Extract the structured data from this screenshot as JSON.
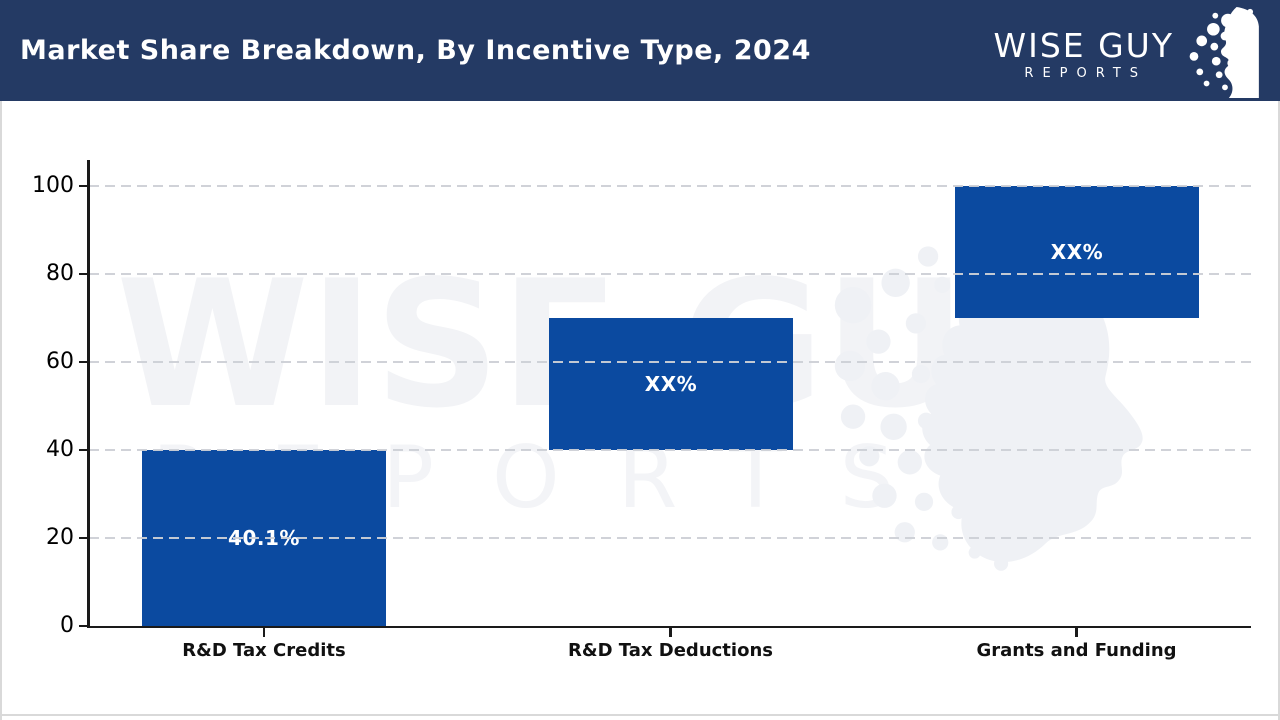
{
  "header": {
    "title": "Market Share Breakdown, By Incentive Type, 2024",
    "background_color": "#243a64",
    "brand": {
      "line1": "WISE GUY",
      "line2": "REPORTS"
    }
  },
  "watermark": {
    "line1": "WISE GUY",
    "line2": "REPORTS"
  },
  "chart_data": {
    "type": "bar",
    "subtype": "waterfall-stacked-segments",
    "title": "Market Share Breakdown, By Incentive Type, 2024",
    "categories": [
      "R&D Tax Credits",
      "R&D Tax Deductions",
      "Grants and Funding"
    ],
    "segments": [
      {
        "category": "R&D Tax Credits",
        "start": 0,
        "end": 40.1,
        "label": "40.1%"
      },
      {
        "category": "R&D Tax Deductions",
        "start": 40,
        "end": 70,
        "label": "XX%"
      },
      {
        "category": "Grants and Funding",
        "start": 70,
        "end": 100,
        "label": "XX%"
      }
    ],
    "xlabel": "",
    "ylabel": "",
    "ylim": [
      0,
      100
    ],
    "yticks": [
      0,
      20,
      40,
      60,
      80,
      100
    ],
    "grid": "horizontal-dashed",
    "gridline_color": "#d9d9d9",
    "bar_color": "#0b4aa0",
    "bar_label_color": "#ffffff",
    "legend": "none"
  }
}
